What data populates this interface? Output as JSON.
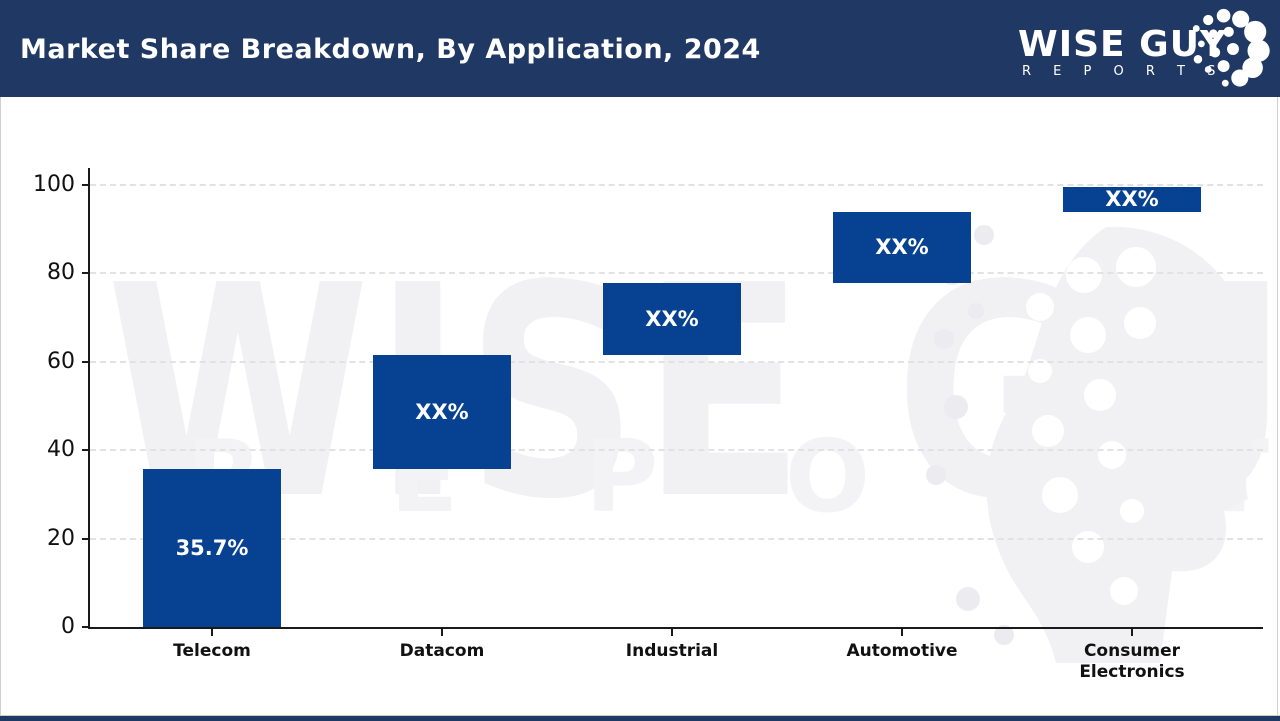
{
  "header": {
    "title": "Market Share Breakdown, By Application, 2024",
    "logo": {
      "brand_top": "WISE GUY",
      "brand_bottom": "R E P O R T S"
    }
  },
  "watermark": {
    "line1": "WISE GUY",
    "line2": "R E P O R T S"
  },
  "colors": {
    "header_bg": "#203864",
    "footer_bg": "#203864",
    "bar": "#064291",
    "bar_label": "#ffffff",
    "axis": "#1a1a1a",
    "grid": "#e2e2e2",
    "watermark": "#f1f1f4"
  },
  "chart_data": {
    "type": "bar",
    "subtype": "waterfall",
    "title": "Market Share Breakdown, By Application, 2024",
    "categories": [
      "Telecom",
      "Datacom",
      "Industrial",
      "Automotive",
      "Consumer Electronics"
    ],
    "bar_labels": [
      "35.7%",
      "XX%",
      "XX%",
      "XX%",
      "XX%"
    ],
    "segments": [
      {
        "start": 0,
        "end": 35.7
      },
      {
        "start": 35.7,
        "end": 61.5
      },
      {
        "start": 61.5,
        "end": 77.8
      },
      {
        "start": 77.8,
        "end": 93.9
      },
      {
        "start": 93.9,
        "end": 99.5
      }
    ],
    "yticks": [
      0,
      20,
      40,
      60,
      80,
      100
    ],
    "ylim": [
      0,
      104
    ],
    "xlabel": "",
    "ylabel": "",
    "grid": "horizontal-dashed",
    "legend": "none"
  }
}
